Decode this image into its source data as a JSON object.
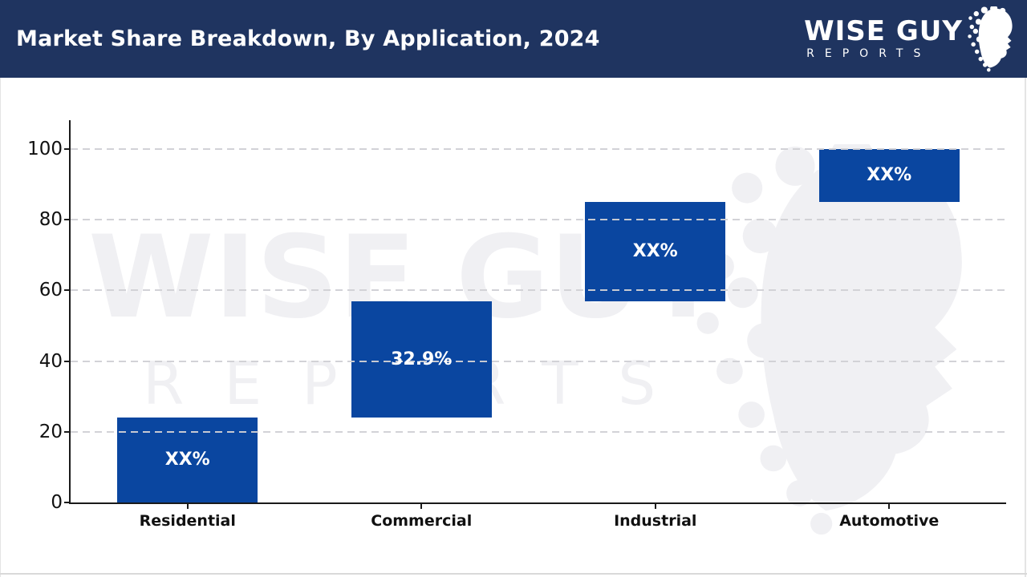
{
  "header": {
    "title": "Market Share Breakdown, By Application, 2024",
    "logo": {
      "line1": "WISE GUY",
      "line2": "REPORTS",
      "face_icon": "dotted-head-profile-icon"
    }
  },
  "watermark": {
    "line1": "WISE GUY",
    "line2": "REPORTS",
    "face_icon": "dotted-head-profile-icon"
  },
  "colors": {
    "header_bg": "#1f3460",
    "bar": "#0a46a0",
    "grid": "#d9d9dd",
    "axis": "#1a1a1a",
    "bar_label": "#ffffff",
    "title": "#ffffff",
    "watermark": "#f0f0f3"
  },
  "chart_data": {
    "type": "bar",
    "subtype": "waterfall",
    "title": "Market Share Breakdown, By Application, 2024",
    "categories": [
      "Residential",
      "Commercial",
      "Industrial",
      "Automotive"
    ],
    "segments": [
      {
        "category": "Residential",
        "start": 0,
        "end": 24,
        "label": "XX%"
      },
      {
        "category": "Commercial",
        "start": 24,
        "end": 56.9,
        "label": "32.9%"
      },
      {
        "category": "Industrial",
        "start": 56.9,
        "end": 85,
        "label": "XX%"
      },
      {
        "category": "Automotive",
        "start": 85,
        "end": 100,
        "label": "XX%"
      }
    ],
    "ylim": [
      0,
      100
    ],
    "yticks": [
      0,
      20,
      40,
      60,
      80,
      100
    ],
    "xlabel": "",
    "ylabel": "",
    "grid": "horizontal-dashed",
    "legend": "none"
  }
}
